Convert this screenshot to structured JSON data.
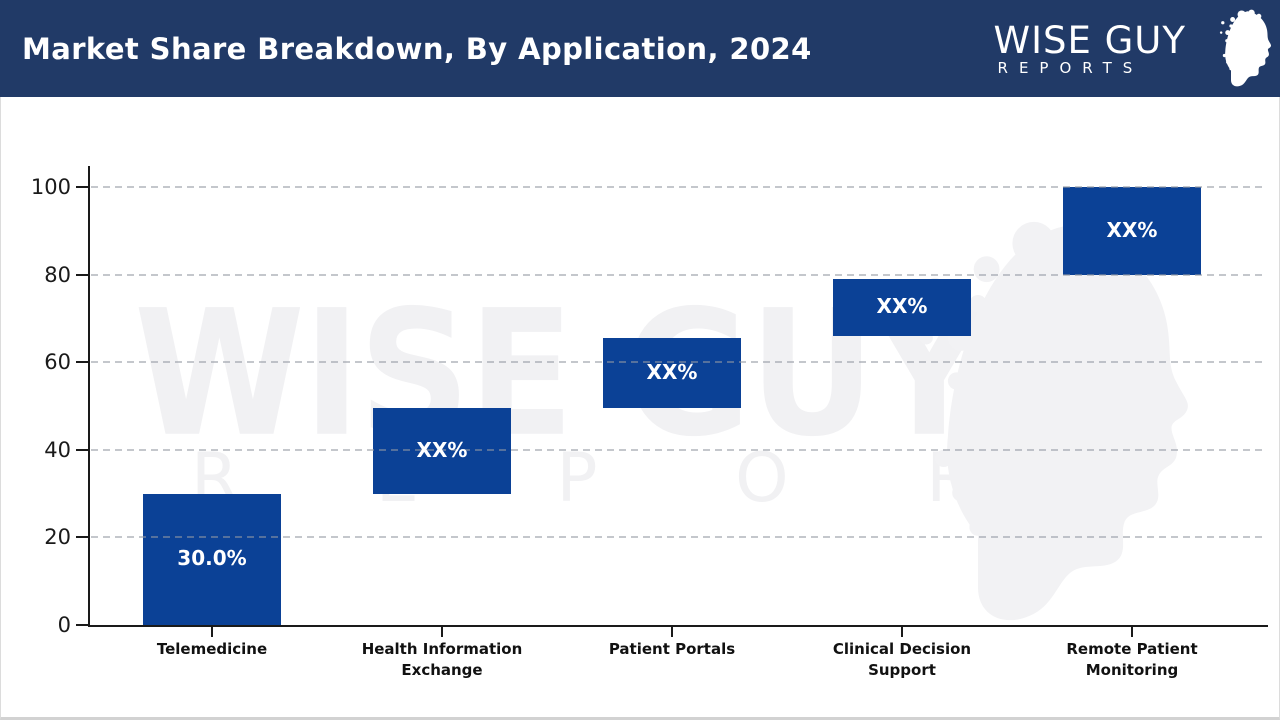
{
  "header": {
    "title": "Market Share Breakdown, By Application, 2024",
    "logo": {
      "line1": "WISE GUY",
      "line2": "REPORTS"
    },
    "bg_color": "#213a67"
  },
  "watermark": {
    "line1": "WISE GUY",
    "line2": "R E P O R T S"
  },
  "chart_data": {
    "type": "bar",
    "subtype": "waterfall",
    "title": "Market Share Breakdown, By Application, 2024",
    "xlabel": "",
    "ylabel": "",
    "categories": [
      "Telemedicine",
      "Health Information Exchange",
      "Patient Portals",
      "Clinical Decision Support",
      "Remote Patient Monitoring"
    ],
    "segments": [
      {
        "category": "Telemedicine",
        "start": 0,
        "end": 30,
        "label": "30.0%"
      },
      {
        "category": "Health Information Exchange",
        "start": 30,
        "end": 49.5,
        "label": "XX%"
      },
      {
        "category": "Patient Portals",
        "start": 49.5,
        "end": 65.5,
        "label": "XX%"
      },
      {
        "category": "Clinical Decision Support",
        "start": 66,
        "end": 79,
        "label": "XX%"
      },
      {
        "category": "Remote Patient Monitoring",
        "start": 80,
        "end": 100,
        "label": "XX%"
      }
    ],
    "ylim": [
      0,
      100
    ],
    "yticks": [
      0,
      20,
      40,
      60,
      80,
      100
    ],
    "grid": "horizontal-dashed",
    "legend": "none",
    "bar_color": "#0b4196",
    "bar_label_color": "#ffffff",
    "axis_color": "#1a1a1a",
    "grid_color": "#d5d5d5"
  }
}
